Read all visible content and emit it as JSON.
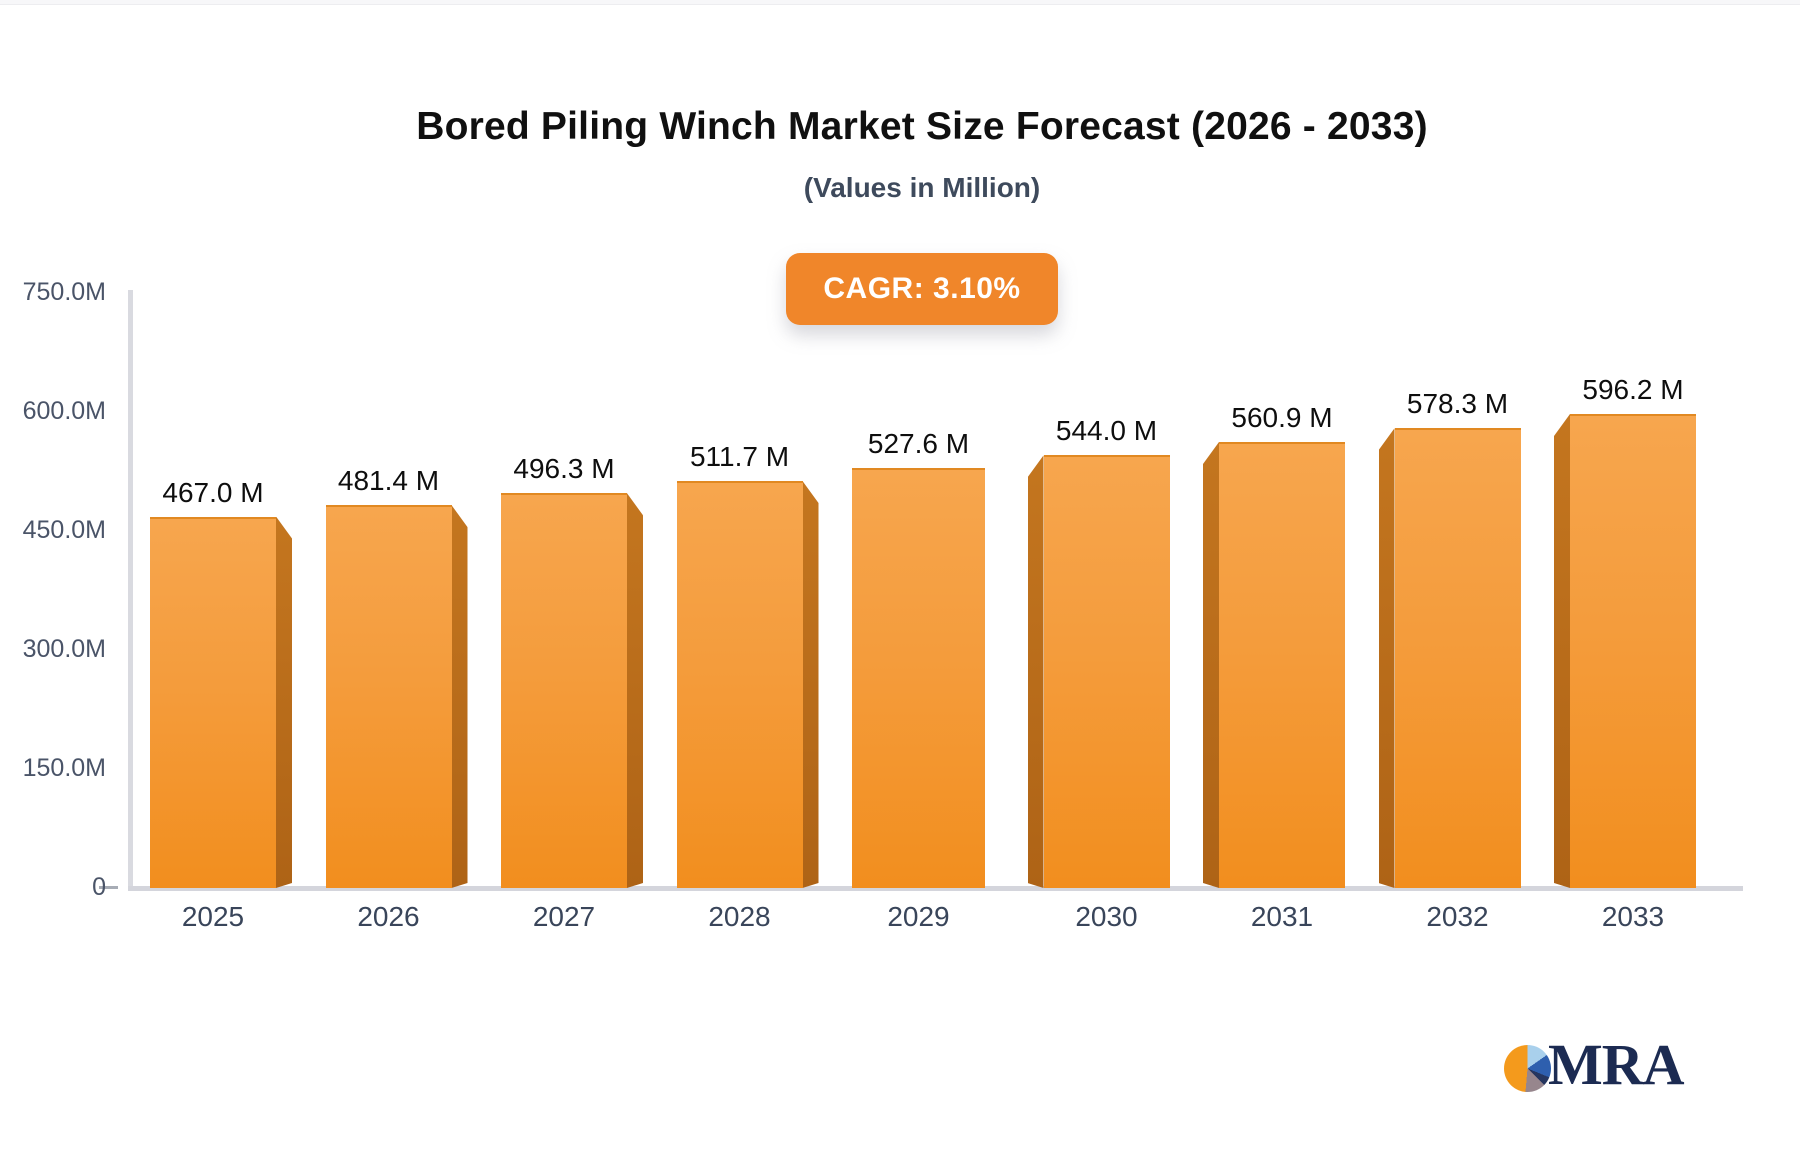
{
  "header": {
    "title": "Bored Piling Winch Market Size Forecast (2026 - 2033)",
    "subtitle": "(Values in Million)",
    "cagr_badge": "CAGR: 3.10%"
  },
  "chart_data": {
    "type": "bar",
    "title": "Bored Piling Winch Market Size Forecast (2026 - 2033)",
    "subtitle": "(Values in Million)",
    "cagr": "3.10%",
    "unit": "Million",
    "categories": [
      "2025",
      "2026",
      "2027",
      "2028",
      "2029",
      "2030",
      "2031",
      "2032",
      "2033"
    ],
    "values": [
      467.0,
      481.4,
      496.3,
      511.7,
      527.6,
      544.0,
      560.9,
      578.3,
      596.2
    ],
    "value_labels": [
      "467.0 M",
      "481.4 M",
      "496.3 M",
      "511.7 M",
      "527.6 M",
      "544.0 M",
      "560.9 M",
      "578.3 M",
      "596.2 M"
    ],
    "xlabel": "",
    "ylabel": "",
    "ylim": [
      0,
      750
    ],
    "grid": false,
    "legend": false,
    "y_axis": {
      "ticks": [
        {
          "label": "750.0M",
          "value": 750
        },
        {
          "label": "600.0M",
          "value": 600
        },
        {
          "label": "450.0M",
          "value": 450
        },
        {
          "label": "300.0M",
          "value": 300
        },
        {
          "label": "150.0M",
          "value": 150
        },
        {
          "label": "0",
          "value": 0
        }
      ]
    },
    "colors": {
      "bar_front_top": "#f7a64e",
      "bar_front_bottom": "#f28e1e",
      "bar_side": "#b96a1a",
      "axis_line": "#d6d7de",
      "tick_text": "#4a5468",
      "value_text": "#0e0e0e",
      "badge_bg": "#f0862a",
      "badge_text": "#ffffff"
    }
  },
  "footer": {
    "logo_text": "MRA"
  }
}
